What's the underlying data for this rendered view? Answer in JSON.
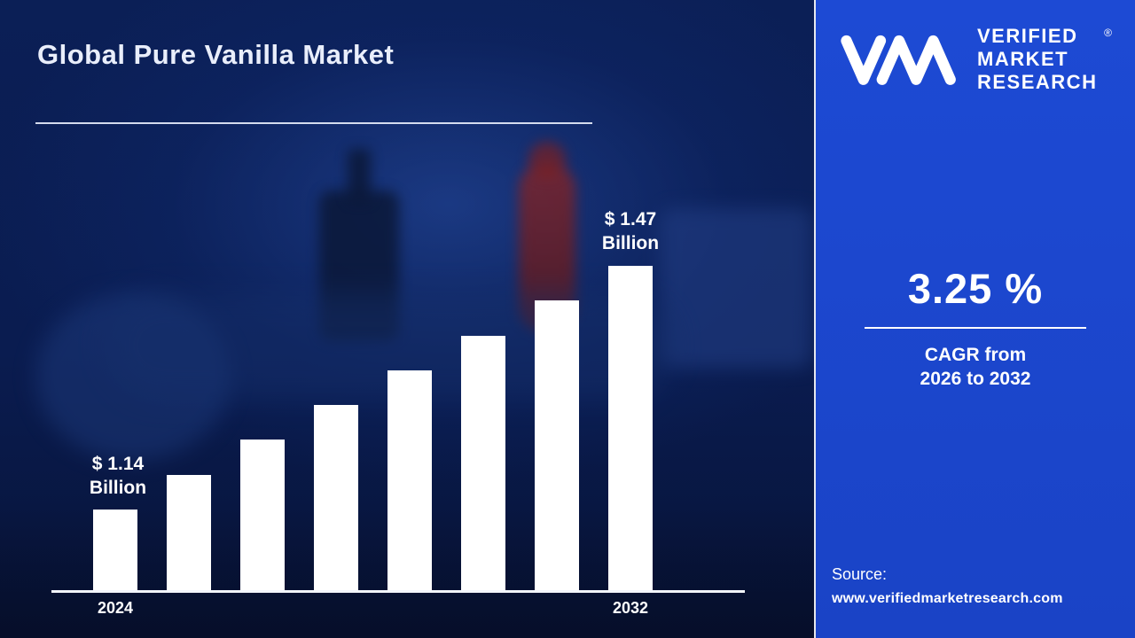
{
  "page": {
    "title": "Global Pure Vanilla Market"
  },
  "chart_data": {
    "type": "bar",
    "title": "Global Pure Vanilla Market",
    "unit": "USD Billion",
    "x_tick_labels": [
      "2024",
      "2032"
    ],
    "values": [
      1.14,
      1.19,
      1.24,
      1.28,
      1.33,
      1.38,
      1.42,
      1.47
    ],
    "first_point": {
      "year": "2024",
      "value": 1.14,
      "value_label": "$ 1.14",
      "unit_label": "Billion"
    },
    "last_point": {
      "year": "2032",
      "value": 1.47,
      "value_label": "$ 1.47",
      "unit_label": "Billion"
    },
    "bar_color": "#ffffff",
    "background_color": "#0a1c50",
    "ylim": [
      0,
      1.6
    ],
    "grid": false,
    "legend": false
  },
  "sidebar": {
    "brand": {
      "line1": "VERIFIED",
      "line2": "MARKET",
      "line3": "RESEARCH",
      "registered": "®"
    },
    "cagr_value": "3.25 %",
    "cagr_line1": "CAGR from",
    "cagr_line2": "2026 to 2032",
    "source_label": "Source:",
    "source_url": "www.verifiedmarketresearch.com",
    "accent_color": "#1b46cf"
  }
}
